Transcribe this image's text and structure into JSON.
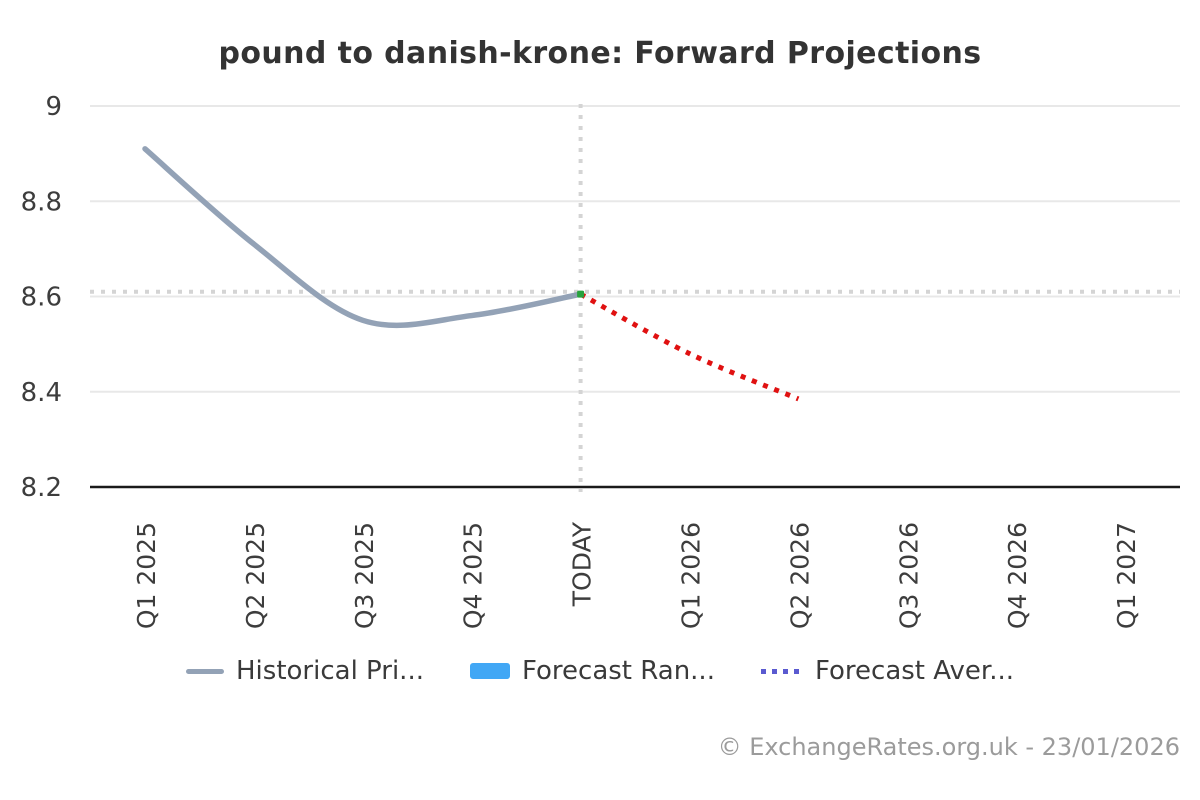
{
  "title": "pound to danish-krone: Forward Projections",
  "watermark": "© ExchangeRates.org.uk - 23/01/2026",
  "legend": {
    "items": [
      {
        "label": "Historical Pri...",
        "type": "line",
        "color": "#93a2b6"
      },
      {
        "label": "Forecast Ran...",
        "type": "rect",
        "color": "#41a7f5"
      },
      {
        "label": "Forecast Aver...",
        "type": "dotted",
        "color": "#5a5ad0"
      }
    ]
  },
  "chart_data": {
    "type": "line",
    "title": "pound to danish-krone: Forward Projections",
    "xlabel": "",
    "ylabel": "",
    "categories": [
      "Q1 2025",
      "Q2 2025",
      "Q3 2025",
      "Q4 2025",
      "TODAY",
      "Q1 2026",
      "Q2 2026",
      "Q3 2026",
      "Q4 2026",
      "Q1 2027"
    ],
    "y_ticks": [
      9,
      8.8,
      8.6,
      8.4,
      8.2
    ],
    "ylim": [
      8.2,
      9.0
    ],
    "grid": true,
    "legend_position": "bottom",
    "today_index": 4,
    "current_rate": 8.61,
    "series": [
      {
        "name": "Historical Price",
        "color": "#93a2b6",
        "style": "solid",
        "x": [
          0,
          1,
          2,
          3,
          4
        ],
        "values": [
          8.91,
          8.71,
          8.55,
          8.56,
          8.605
        ]
      },
      {
        "name": "Forecast Average",
        "color": "#e01111",
        "style": "dotted",
        "x": [
          4,
          5,
          6
        ],
        "values": [
          8.605,
          8.48,
          8.385
        ]
      }
    ],
    "end_marker": {
      "x": 4,
      "value": 8.605,
      "color": "#27a23d"
    }
  }
}
